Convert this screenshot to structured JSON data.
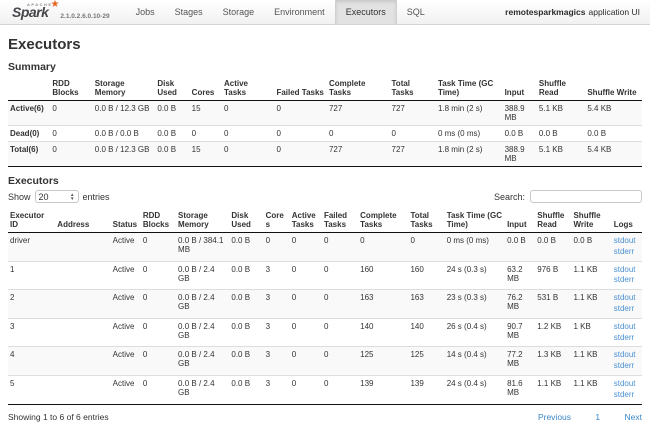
{
  "navbar": {
    "logo": {
      "apache": "APACHE",
      "name": "Spark",
      "star_icon": "★",
      "version": "2.1.0.2.6.0.10-29"
    },
    "items": [
      {
        "label": "Jobs",
        "active": false
      },
      {
        "label": "Stages",
        "active": false
      },
      {
        "label": "Storage",
        "active": false
      },
      {
        "label": "Environment",
        "active": false
      },
      {
        "label": "Executors",
        "active": true
      },
      {
        "label": "SQL",
        "active": false
      }
    ],
    "app_name": "remotesparkmagics",
    "app_suffix": "application UI"
  },
  "page": {
    "title": "Executors"
  },
  "summary": {
    "heading": "Summary",
    "columns": [
      "",
      "RDD Blocks",
      "Storage Memory",
      "Disk Used",
      "Cores",
      "Active Tasks",
      "Failed Tasks",
      "Complete Tasks",
      "Total Tasks",
      "Task Time (GC Time)",
      "Input",
      "Shuffle Read",
      "Shuffle Write"
    ],
    "rows": [
      {
        "label": "Active(6)",
        "values": [
          "0",
          "0.0 B / 12.3 GB",
          "0.0 B",
          "15",
          "0",
          "0",
          "727",
          "727",
          "1.8 min (2 s)",
          "388.9 MB",
          "5.1 KB",
          "5.4 KB"
        ]
      },
      {
        "label": "Dead(0)",
        "values": [
          "0",
          "0.0 B / 0.0 B",
          "0.0 B",
          "0",
          "0",
          "0",
          "0",
          "0",
          "0 ms (0 ms)",
          "0.0 B",
          "0.0 B",
          "0.0 B"
        ]
      },
      {
        "label": "Total(6)",
        "values": [
          "0",
          "0.0 B / 12.3 GB",
          "0.0 B",
          "15",
          "0",
          "0",
          "727",
          "727",
          "1.8 min (2 s)",
          "388.9 MB",
          "5.1 KB",
          "5.4 KB"
        ]
      }
    ]
  },
  "executors": {
    "heading": "Executors",
    "show_label": "Show",
    "entries_value": "20",
    "entries_label": "entries",
    "search_label": "Search:",
    "search_value": "",
    "columns": [
      "Executor ID",
      "Address",
      "Status",
      "RDD Blocks",
      "Storage Memory",
      "Disk Used",
      "Cores",
      "Active Tasks",
      "Failed Tasks",
      "Complete Tasks",
      "Total Tasks",
      "Task Time (GC Time)",
      "Input",
      "Shuffle Read",
      "Shuffle Write",
      "Logs"
    ],
    "rows": [
      {
        "cells": [
          "driver",
          "",
          "Active",
          "0",
          "0.0 B / 384.1 MB",
          "0.0 B",
          "0",
          "0",
          "0",
          "0",
          "0",
          "0 ms (0 ms)",
          "0.0 B",
          "0.0 B",
          "0.0 B"
        ],
        "logs": [
          "stdout",
          "stderr"
        ]
      },
      {
        "cells": [
          "1",
          "",
          "Active",
          "0",
          "0.0 B / 2.4 GB",
          "0.0 B",
          "3",
          "0",
          "0",
          "160",
          "160",
          "24 s (0.3 s)",
          "63.2 MB",
          "976 B",
          "1.1 KB"
        ],
        "logs": [
          "stdout",
          "stderr"
        ]
      },
      {
        "cells": [
          "2",
          "",
          "Active",
          "0",
          "0.0 B / 2.4 GB",
          "0.0 B",
          "3",
          "0",
          "0",
          "163",
          "163",
          "23 s (0.3 s)",
          "76.2 MB",
          "531 B",
          "1.1 KB"
        ],
        "logs": [
          "stdout",
          "stderr"
        ]
      },
      {
        "cells": [
          "3",
          "",
          "Active",
          "0",
          "0.0 B / 2.4 GB",
          "0.0 B",
          "3",
          "0",
          "0",
          "140",
          "140",
          "26 s (0.4 s)",
          "90.7 MB",
          "1.2 KB",
          "1 KB"
        ],
        "logs": [
          "stdout",
          "stderr"
        ]
      },
      {
        "cells": [
          "4",
          "",
          "Active",
          "0",
          "0.0 B / 2.4 GB",
          "0.0 B",
          "3",
          "0",
          "0",
          "125",
          "125",
          "14 s (0.4 s)",
          "77.2 MB",
          "1.3 KB",
          "1.1 KB"
        ],
        "logs": [
          "stdout",
          "stderr"
        ]
      },
      {
        "cells": [
          "5",
          "",
          "Active",
          "0",
          "0.0 B / 2.4 GB",
          "0.0 B",
          "3",
          "0",
          "0",
          "139",
          "139",
          "24 s (0.4 s)",
          "81.6 MB",
          "1.1 KB",
          "1.1 KB"
        ],
        "logs": [
          "stdout",
          "stderr"
        ]
      }
    ],
    "footer": {
      "info": "Showing 1 to 6 of 6 entries",
      "previous": "Previous",
      "page": "1",
      "next": "Next"
    }
  }
}
